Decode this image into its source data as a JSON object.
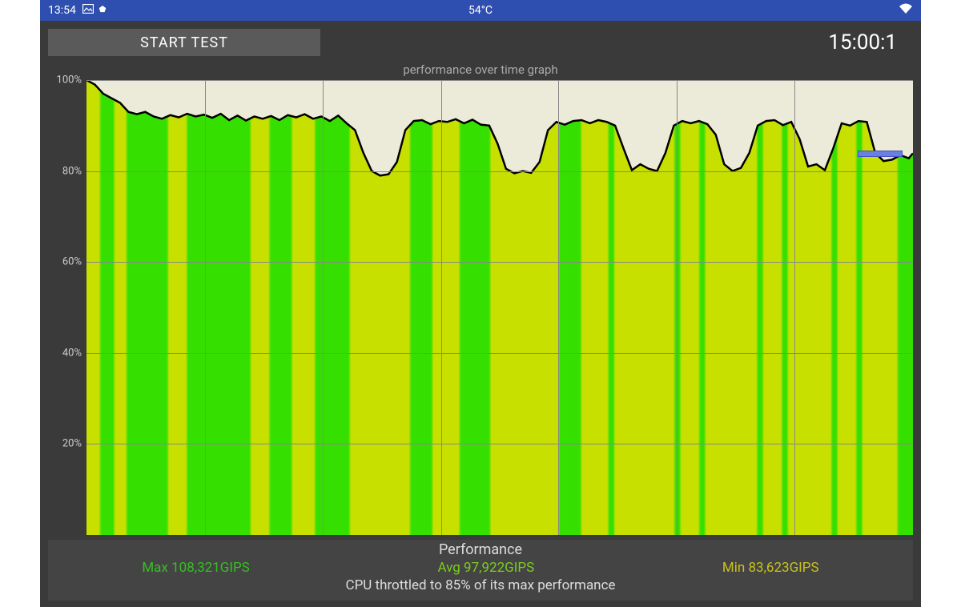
{
  "statusbar": {
    "time": "13:54",
    "picture_icon": "▢",
    "dot_icon": "⬤",
    "temperature": "54°C",
    "wifi_icon": "▾"
  },
  "controls": {
    "start_button": "START TEST",
    "timer": "15:00:1"
  },
  "chart": {
    "title": "performance over time graph",
    "background": "#ecead8",
    "grid_color": "#888888",
    "line_color": "#000000",
    "line_width": 2.5,
    "fill_top": "#35e000",
    "fill_warm": "#c7e000",
    "marker_color": "#6a7fe0",
    "marker_x": 93.3,
    "marker_y": 83.8,
    "marker_w": 5.2,
    "ylim": [
      0,
      100
    ],
    "yticks": [
      20,
      40,
      60,
      80,
      100
    ],
    "vgrid": [
      14.3,
      28.6,
      42.9,
      57.1,
      71.4,
      85.7
    ],
    "warm_bands": [
      {
        "x": 0,
        "w": 1.5
      },
      {
        "x": 3.5,
        "w": 1.2
      },
      {
        "x": 10,
        "w": 2
      },
      {
        "x": 20,
        "w": 2
      },
      {
        "x": 25,
        "w": 2.5
      },
      {
        "x": 32,
        "w": 7
      },
      {
        "x": 42,
        "w": 3
      },
      {
        "x": 49,
        "w": 8
      },
      {
        "x": 60,
        "w": 3
      },
      {
        "x": 64,
        "w": 7
      },
      {
        "x": 72,
        "w": 2
      },
      {
        "x": 75,
        "w": 6
      },
      {
        "x": 82,
        "w": 2
      },
      {
        "x": 85,
        "w": 5
      },
      {
        "x": 91,
        "w": 2
      },
      {
        "x": 94,
        "w": 4
      }
    ],
    "data": [
      [
        0,
        100
      ],
      [
        1,
        99
      ],
      [
        2,
        97
      ],
      [
        3,
        96
      ],
      [
        4,
        95
      ],
      [
        5,
        93
      ],
      [
        6,
        92.5
      ],
      [
        7,
        93
      ],
      [
        8,
        92
      ],
      [
        9,
        91.5
      ],
      [
        10,
        92.3
      ],
      [
        11,
        91.8
      ],
      [
        12,
        92.6
      ],
      [
        13,
        92
      ],
      [
        14,
        92.4
      ],
      [
        15,
        91.7
      ],
      [
        16,
        92.6
      ],
      [
        17,
        91.2
      ],
      [
        18,
        92.2
      ],
      [
        19,
        91.1
      ],
      [
        20,
        92
      ],
      [
        21,
        91.5
      ],
      [
        22,
        92.1
      ],
      [
        23,
        91.2
      ],
      [
        24,
        92.3
      ],
      [
        25,
        91.8
      ],
      [
        26,
        92.5
      ],
      [
        27,
        91.5
      ],
      [
        28,
        92
      ],
      [
        29,
        91
      ],
      [
        30,
        92.2
      ],
      [
        31,
        90.5
      ],
      [
        32,
        89
      ],
      [
        33,
        84
      ],
      [
        34,
        80
      ],
      [
        35,
        79
      ],
      [
        36,
        79.3
      ],
      [
        37,
        82
      ],
      [
        38,
        89
      ],
      [
        39,
        91
      ],
      [
        40,
        91.2
      ],
      [
        41,
        90.3
      ],
      [
        42,
        91
      ],
      [
        43,
        90.8
      ],
      [
        44,
        91.4
      ],
      [
        45,
        90.5
      ],
      [
        46,
        91.3
      ],
      [
        47,
        90.2
      ],
      [
        48,
        90
      ],
      [
        49,
        86
      ],
      [
        50,
        80.5
      ],
      [
        51,
        79.5
      ],
      [
        52,
        80
      ],
      [
        53,
        79.6
      ],
      [
        54,
        82
      ],
      [
        55,
        89
      ],
      [
        56,
        90.8
      ],
      [
        57,
        90.2
      ],
      [
        58,
        91
      ],
      [
        59,
        91.2
      ],
      [
        60,
        90.5
      ],
      [
        61,
        91.2
      ],
      [
        62,
        90.8
      ],
      [
        63,
        90
      ],
      [
        64,
        85
      ],
      [
        65,
        80.2
      ],
      [
        66,
        81.5
      ],
      [
        67,
        80.5
      ],
      [
        68,
        80
      ],
      [
        69,
        84
      ],
      [
        70,
        90
      ],
      [
        71,
        91
      ],
      [
        72,
        90.5
      ],
      [
        73,
        91
      ],
      [
        74,
        90.3
      ],
      [
        75,
        88
      ],
      [
        76,
        81.5
      ],
      [
        77,
        80
      ],
      [
        78,
        80.7
      ],
      [
        79,
        84
      ],
      [
        80,
        90
      ],
      [
        81,
        91
      ],
      [
        82,
        91.2
      ],
      [
        83,
        90.1
      ],
      [
        84,
        90.8
      ],
      [
        85,
        87
      ],
      [
        86,
        81
      ],
      [
        87,
        81.5
      ],
      [
        88,
        80.2
      ],
      [
        89,
        85
      ],
      [
        90,
        90.5
      ],
      [
        91,
        90
      ],
      [
        92,
        91
      ],
      [
        93,
        90.8
      ],
      [
        94,
        84
      ],
      [
        95,
        82.2
      ],
      [
        96,
        82.5
      ],
      [
        97,
        83.5
      ],
      [
        98,
        82.8
      ],
      [
        98.5,
        83.9
      ]
    ]
  },
  "performance": {
    "header": "Performance",
    "max_label": "Max 108,321GIPS",
    "avg_label": "Avg 97,922GIPS",
    "min_label": "Min 83,623GIPS",
    "throttle": "CPU throttled to 85% of its max performance"
  }
}
